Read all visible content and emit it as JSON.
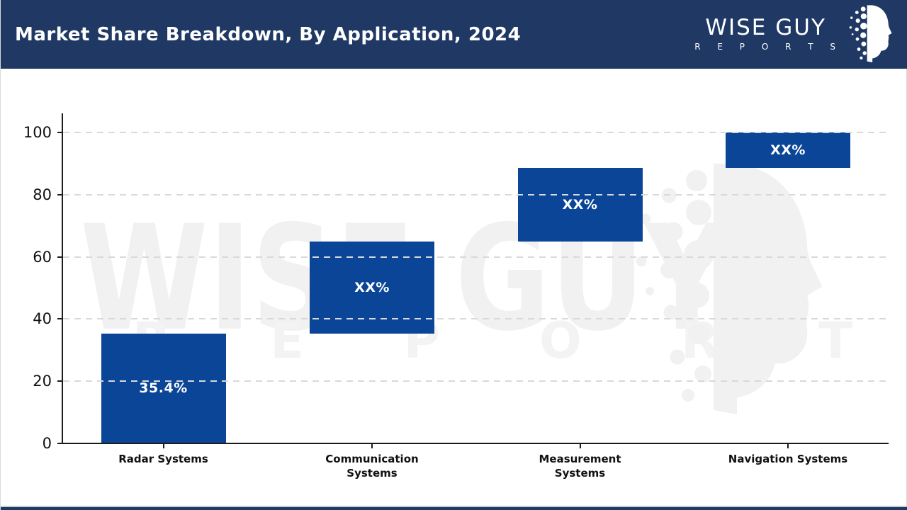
{
  "header": {
    "title": "Market Share Breakdown, By Application, 2024",
    "bg_color": "#1f3864",
    "logo": {
      "line1": "WISE GUY",
      "line2": "REPORTS"
    }
  },
  "watermark": {
    "line1": "WISE GUY",
    "line2": "REPORTS"
  },
  "chart_data": {
    "type": "bar",
    "subtype": "floating-segment-waterfall",
    "title": "Market Share Breakdown, By Application, 2024",
    "categories": [
      "Radar Systems",
      "Communication Systems",
      "Measurement Systems",
      "Navigation Systems"
    ],
    "segments": [
      {
        "category": "Radar Systems",
        "label_lines": "Radar Systems",
        "start": 0,
        "end": 35.4,
        "value_label": "35.4%"
      },
      {
        "category": "Communication Systems",
        "label_lines": "Communication\nSystems",
        "start": 35.4,
        "end": 64.9,
        "value_label": "XX%"
      },
      {
        "category": "Measurement Systems",
        "label_lines": "Measurement\nSystems",
        "start": 64.9,
        "end": 88.5,
        "value_label": "XX%"
      },
      {
        "category": "Navigation Systems",
        "label_lines": "Navigation Systems",
        "start": 88.5,
        "end": 100,
        "value_label": "XX%"
      }
    ],
    "y_ticks": [
      0,
      20,
      40,
      60,
      80,
      100
    ],
    "ylim": [
      0,
      105
    ],
    "xlabel": "",
    "ylabel": "",
    "grid": "horizontal-dashed",
    "legend": null,
    "bar_color": "#0b4598",
    "grid_color": "#d9d9d9",
    "axis_color": "#1c1c1c"
  }
}
